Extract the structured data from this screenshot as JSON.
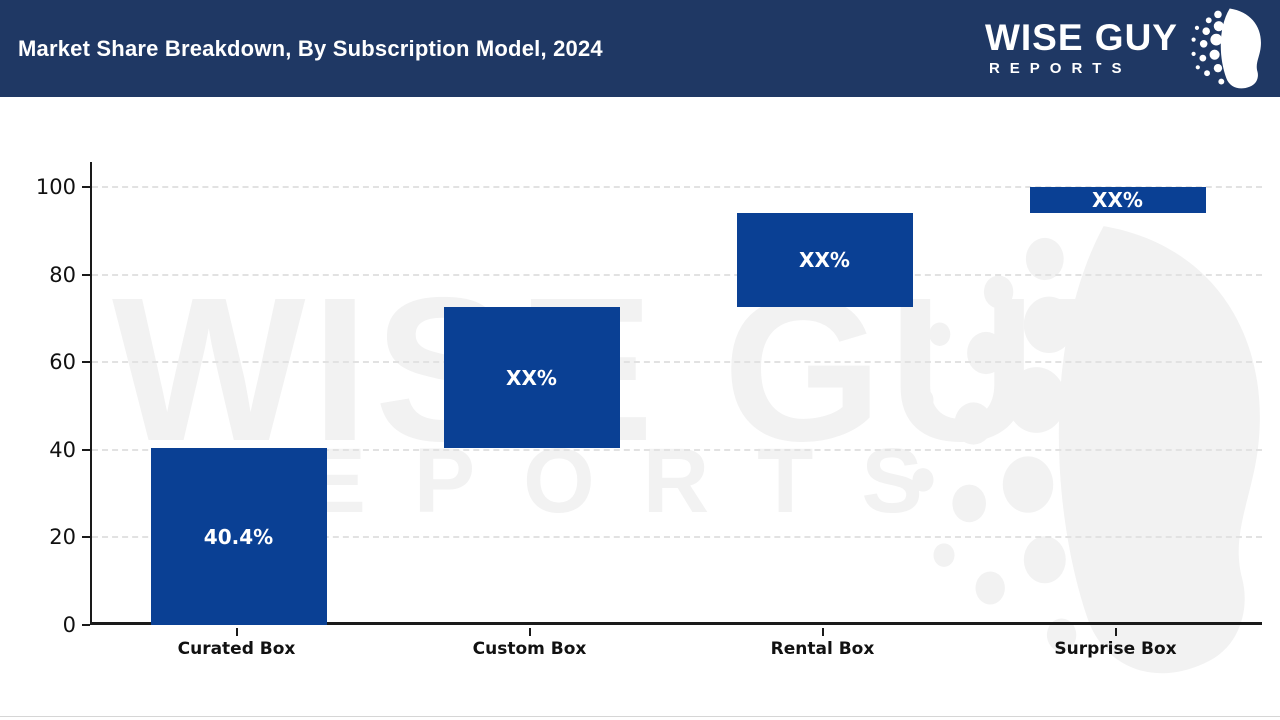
{
  "header": {
    "title": "Market Share Breakdown, By Subscription Model, 2024",
    "bg_color": "#1f3864",
    "logo": {
      "line1": "WISE GUY",
      "line2": "REPORTS"
    }
  },
  "watermark": {
    "line1": "WISE GUY",
    "line2": "REPORTS"
  },
  "chart_data": {
    "type": "bar",
    "subtype": "floating-waterfall",
    "title": "Market Share Breakdown, By Subscription Model, 2024",
    "categories": [
      "Curated Box",
      "Custom Box",
      "Rental Box",
      "Surprise Box"
    ],
    "bars": [
      {
        "category": "Curated Box",
        "start": 0,
        "end": 40.4,
        "label": "40.4%",
        "value_est": 40.4
      },
      {
        "category": "Custom Box",
        "start": 40.4,
        "end": 72.5,
        "label": "XX%",
        "value_est": 32.1
      },
      {
        "category": "Rental Box",
        "start": 72.5,
        "end": 94.0,
        "label": "XX%",
        "value_est": 21.5
      },
      {
        "category": "Surprise Box",
        "start": 94.0,
        "end": 100,
        "label": "XX%",
        "value_est": 6.0
      }
    ],
    "ylim": [
      0,
      100
    ],
    "yticks": [
      0,
      20,
      40,
      60,
      80,
      100
    ],
    "xlabel": "",
    "ylabel": "",
    "bar_color": "#0a4094",
    "bar_label_color": "#ffffff",
    "grid": {
      "axis": "y",
      "style": "dashed",
      "color": "#e2e2e2"
    },
    "legend": null
  }
}
